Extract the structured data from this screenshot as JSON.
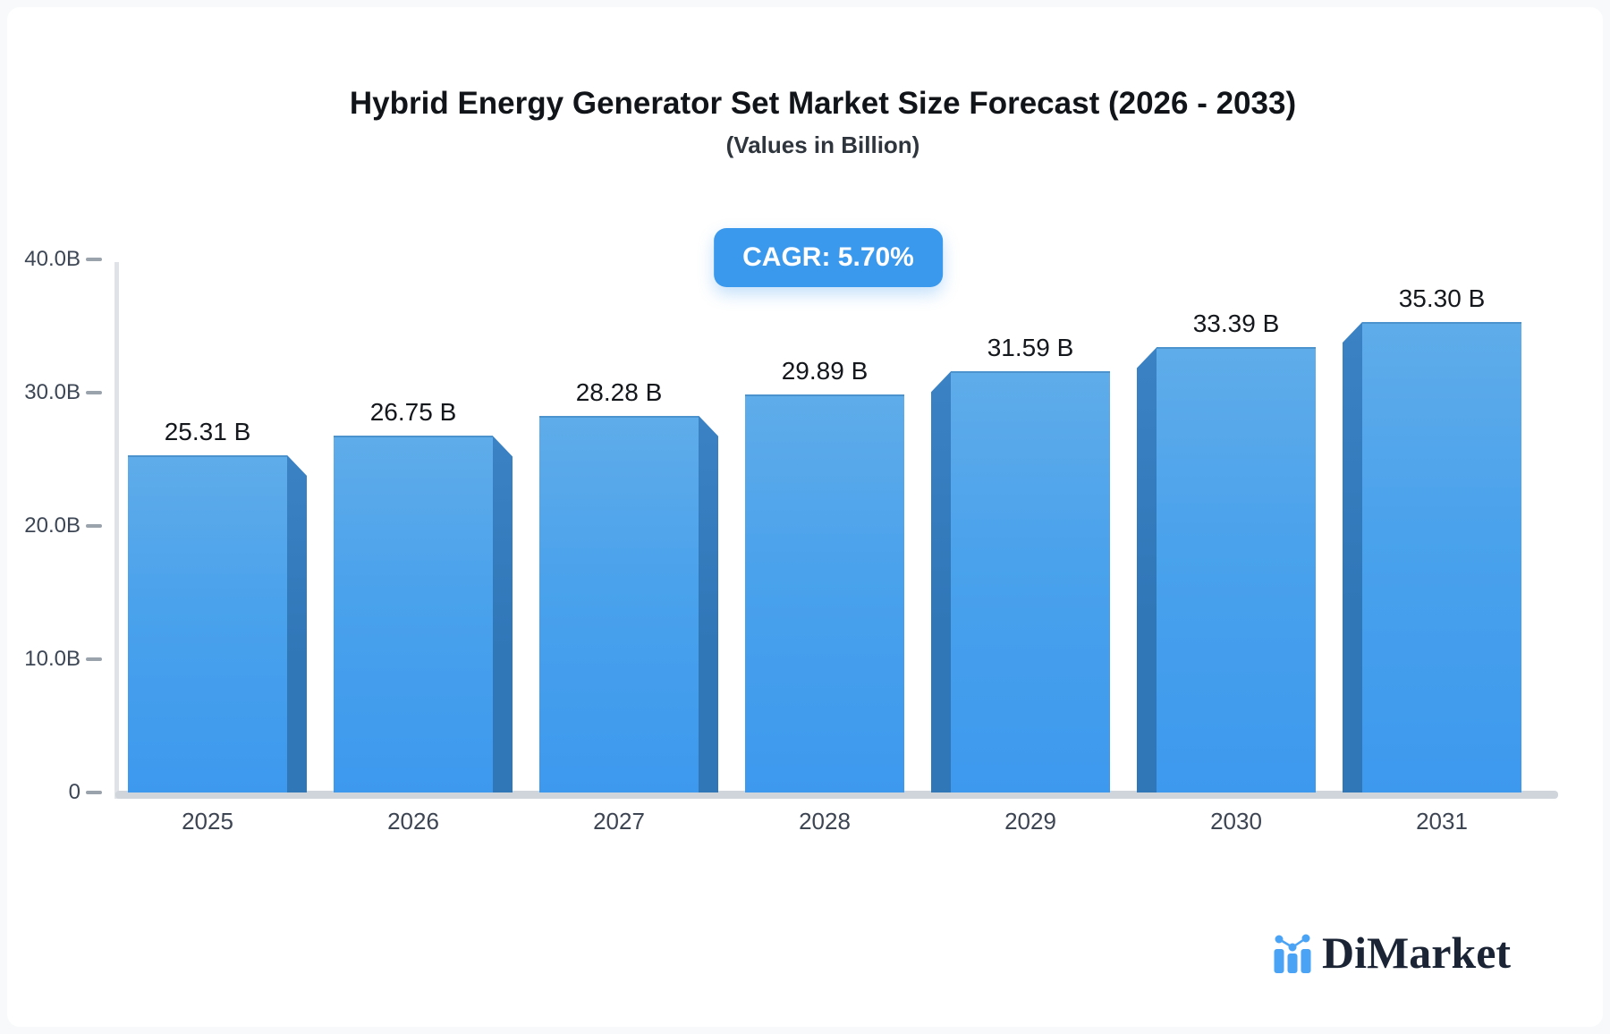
{
  "header": {
    "title": "Hybrid Energy Generator Set Market Size Forecast (2026 - 2033)",
    "subtitle": "(Values in Billion)",
    "badge": "CAGR: 5.70%"
  },
  "chart_data": {
    "type": "bar",
    "title": "Hybrid Energy Generator Set Market Size Forecast (2026 - 2033)",
    "subtitle": "(Values in Billion)",
    "annotation": "CAGR: 5.70%",
    "categories": [
      "2025",
      "2026",
      "2027",
      "2028",
      "2029",
      "2030",
      "2031"
    ],
    "values": [
      25.31,
      26.75,
      28.28,
      29.89,
      31.59,
      33.39,
      35.3
    ],
    "value_labels": [
      "25.31 B",
      "26.75 B",
      "28.28 B",
      "29.89 B",
      "31.59 B",
      "33.39 B",
      "35.30 B"
    ],
    "xlabel": "",
    "ylabel": "",
    "ylim": [
      0,
      40
    ],
    "y_ticks": [
      {
        "value": 0,
        "label": "0"
      },
      {
        "value": 10,
        "label": "10.0B"
      },
      {
        "value": 20,
        "label": "20.0B"
      },
      {
        "value": 30,
        "label": "30.0B"
      },
      {
        "value": 40,
        "label": "40.0B"
      }
    ],
    "grid": false,
    "legend": false,
    "bar_style": "3d-extruded-toward-center-vanishing-point"
  },
  "colors": {
    "bar_face_top": "#5face9",
    "bar_face_bottom": "#3d99ee",
    "bar_side": "#3077b8",
    "badge_bg": "#3b99ed",
    "badge_text": "#ffffff",
    "axis_line": "#dfe2e7",
    "baseline": "#d0d5dc",
    "tick_text": "#3d4654",
    "label_text": "#14171c",
    "brand_text": "#1b2435",
    "brand_icon": "#4aa3f5",
    "page_bg": "#f7f9fb",
    "card_bg": "#ffffff"
  },
  "brand": {
    "name": "DiMarket"
  }
}
